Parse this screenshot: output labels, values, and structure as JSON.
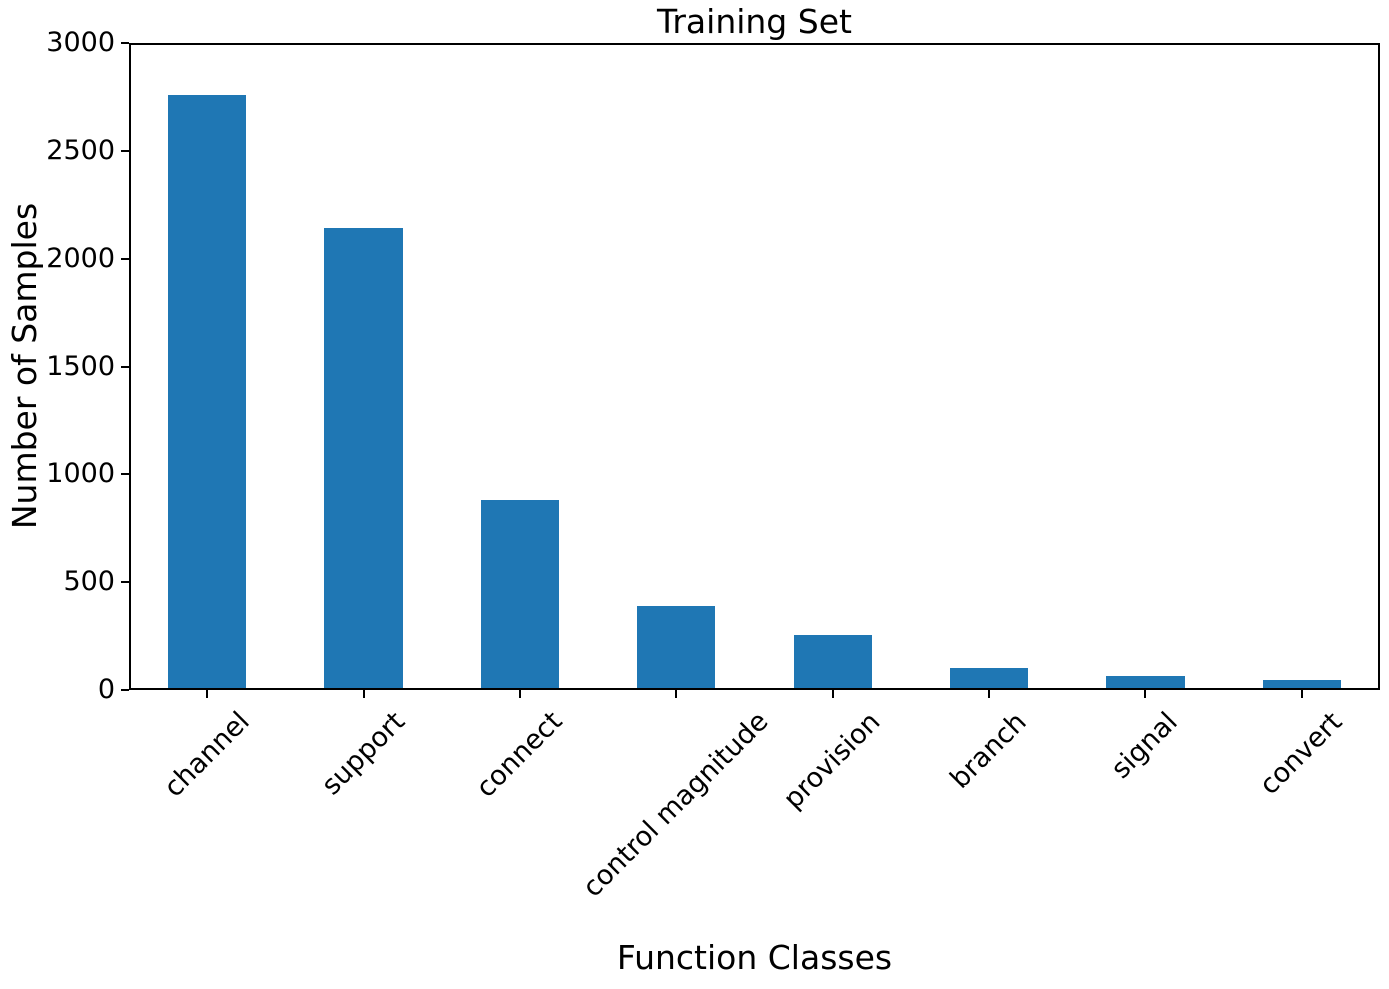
{
  "chart_data": {
    "type": "bar",
    "title": "Training Set",
    "xlabel": "Function Classes",
    "ylabel": "Number of Samples",
    "categories": [
      "channel",
      "support",
      "connect",
      "control magnitude",
      "provision",
      "branch",
      "signal",
      "convert"
    ],
    "values": [
      2757,
      2143,
      881,
      391,
      253,
      104,
      63,
      48
    ],
    "ylim": [
      0,
      3000
    ],
    "yticks": [
      0,
      500,
      1000,
      1500,
      2000,
      2500,
      3000
    ],
    "bar_color": "#1f77b4",
    "bar_width_fraction": 0.5,
    "x_tick_rotation_deg": 45,
    "grid": false,
    "legend": "none",
    "text_color": "#000000"
  }
}
